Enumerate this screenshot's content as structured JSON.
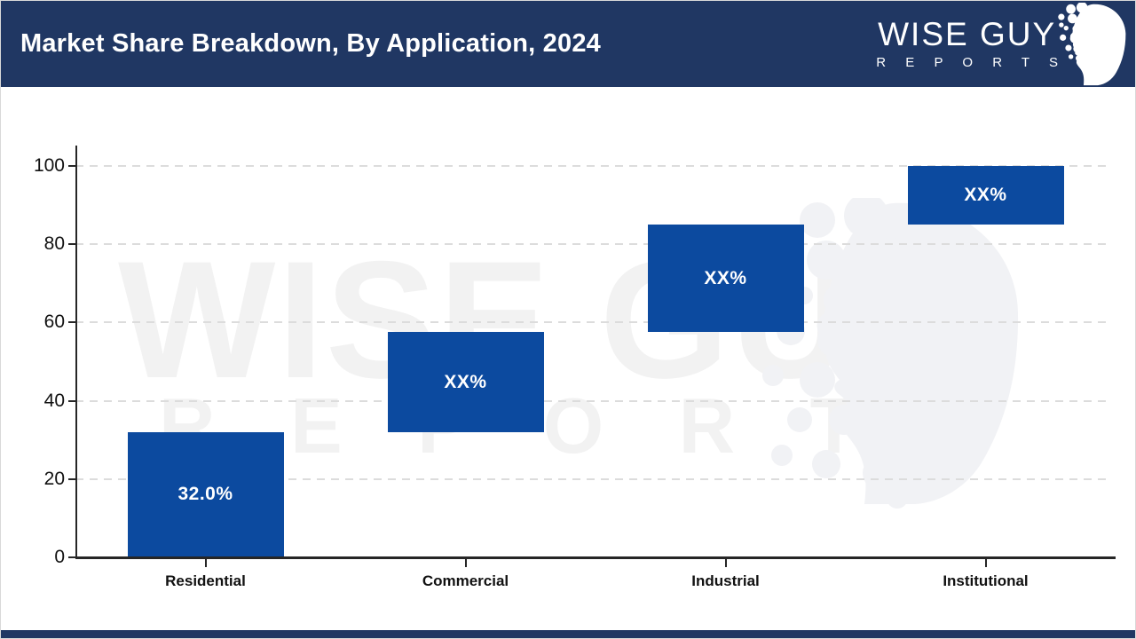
{
  "header": {
    "title": "Market Share Breakdown, By Application, 2024",
    "logo": {
      "wordmark": "WISE GUY",
      "subtext": "R E P O R T S"
    }
  },
  "watermark": {
    "wordmark": "WISE GU",
    "subtext": "R E P O R T S"
  },
  "chart_data": {
    "type": "bar",
    "variant": "waterfall",
    "title": "Market Share Breakdown, By Application, 2024",
    "categories": [
      "Residential",
      "Commercial",
      "Industrial",
      "Institutional"
    ],
    "segments": [
      {
        "category": "Residential",
        "start": 0,
        "end": 32,
        "label": "32.0%"
      },
      {
        "category": "Commercial",
        "start": 32,
        "end": 57.5,
        "label": "XX%"
      },
      {
        "category": "Industrial",
        "start": 57.5,
        "end": 85,
        "label": "XX%"
      },
      {
        "category": "Institutional",
        "start": 85,
        "end": 100,
        "label": "XX%"
      }
    ],
    "ylim": [
      0,
      100
    ],
    "yticks": [
      0,
      20,
      40,
      60,
      80,
      100
    ],
    "grid": "horizontal-dashed",
    "legend": "none",
    "xlabel": "",
    "ylabel": ""
  },
  "colors": {
    "header_bg": "#203763",
    "footer_bg": "#203763",
    "bar": "#0c4a9f",
    "bar_label": "#ffffff",
    "grid": "#dcdcdc",
    "axis": "#262626",
    "tick_text": "#111111",
    "watermark": "#f2f2f2"
  }
}
